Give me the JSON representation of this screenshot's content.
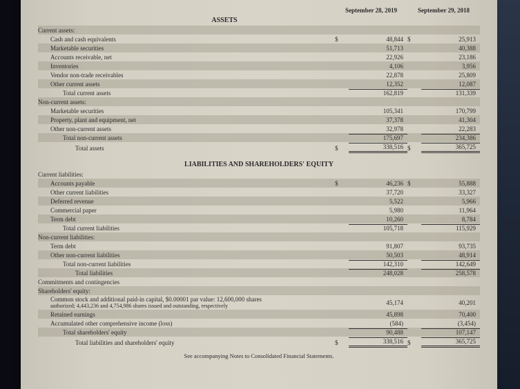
{
  "dates": {
    "col1": "September 28, 2019",
    "col2": "September 29, 2018"
  },
  "assets": {
    "header": "ASSETS",
    "current_label": "Current assets:",
    "rows": [
      {
        "label": "Cash and cash equivalents",
        "v1": "48,844",
        "v2": "25,913",
        "s1": "$",
        "s2": "$"
      },
      {
        "label": "Marketable securities",
        "v1": "51,713",
        "v2": "40,388",
        "alt": true
      },
      {
        "label": "Accounts receivable, net",
        "v1": "22,926",
        "v2": "23,186"
      },
      {
        "label": "Inventories",
        "v1": "4,106",
        "v2": "3,956",
        "alt": true
      },
      {
        "label": "Vendor non-trade receivables",
        "v1": "22,878",
        "v2": "25,809"
      },
      {
        "label": "Other current assets",
        "v1": "12,352",
        "v2": "12,087",
        "alt": true
      },
      {
        "label": "Total current assets",
        "v1": "162,819",
        "v2": "131,339",
        "indent": 2,
        "ul": "single"
      }
    ],
    "noncurrent_label": "Non-current assets:",
    "nc_rows": [
      {
        "label": "Marketable securities",
        "v1": "105,341",
        "v2": "170,799"
      },
      {
        "label": "Property, plant and equipment, net",
        "v1": "37,378",
        "v2": "41,304",
        "alt": true
      },
      {
        "label": "Other non-current assets",
        "v1": "32,978",
        "v2": "22,283"
      },
      {
        "label": "Total non-current assets",
        "v1": "175,697",
        "v2": "234,386",
        "indent": 2,
        "alt": true,
        "ul": "single"
      },
      {
        "label": "Total assets",
        "v1": "338,516",
        "v2": "365,725",
        "indent": 3,
        "s1": "$",
        "s2": "$",
        "ul": "double"
      }
    ]
  },
  "liab": {
    "header": "LIABILITIES AND SHAREHOLDERS' EQUITY",
    "current_label": "Current liabilities:",
    "rows": [
      {
        "label": "Accounts payable",
        "v1": "46,236",
        "v2": "55,888",
        "s1": "$",
        "s2": "$",
        "alt": true
      },
      {
        "label": "Other current liabilities",
        "v1": "37,720",
        "v2": "33,327"
      },
      {
        "label": "Deferred revenue",
        "v1": "5,522",
        "v2": "5,966",
        "alt": true
      },
      {
        "label": "Commercial paper",
        "v1": "5,980",
        "v2": "11,964"
      },
      {
        "label": "Term debt",
        "v1": "10,260",
        "v2": "8,784",
        "alt": true
      },
      {
        "label": "Total current liabilities",
        "v1": "105,718",
        "v2": "115,929",
        "indent": 2,
        "ul": "single"
      }
    ],
    "noncurrent_label": "Non-current liabilities:",
    "nc_rows": [
      {
        "label": "Term debt",
        "v1": "91,807",
        "v2": "93,735"
      },
      {
        "label": "Other non-current liabilities",
        "v1": "50,503",
        "v2": "48,914",
        "alt": true
      },
      {
        "label": "Total non-current liabilities",
        "v1": "142,310",
        "v2": "142,649",
        "indent": 2,
        "ul": "single"
      },
      {
        "label": "Total liabilities",
        "v1": "248,028",
        "v2": "258,578",
        "indent": 3,
        "alt": true,
        "ul": "single"
      }
    ],
    "commit_label": "Commitments and contingencies",
    "equity_label": "Shareholders' equity:",
    "eq_rows": [
      {
        "label": "Common stock and additional paid-in capital, $0.00001 par value: 12,600,000 shares",
        "sub": "authorized; 4,443,236 and 4,754,986 shares issued and outstanding, respectively",
        "v1": "45,174",
        "v2": "40,201"
      },
      {
        "label": "Retained earnings",
        "v1": "45,898",
        "v2": "70,400",
        "alt": true
      },
      {
        "label": "Accumulated other comprehensive income (loss)",
        "v1": "(584)",
        "v2": "(3,454)"
      },
      {
        "label": "Total shareholders' equity",
        "v1": "90,488",
        "v2": "107,147",
        "indent": 2,
        "alt": true,
        "ul": "single"
      },
      {
        "label": "Total liabilities and shareholders' equity",
        "v1": "338,516",
        "v2": "365,725",
        "indent": 3,
        "s1": "$",
        "s2": "$",
        "ul": "double"
      }
    ]
  },
  "footnote": "See accompanying Notes to Consolidated Financial Statements."
}
